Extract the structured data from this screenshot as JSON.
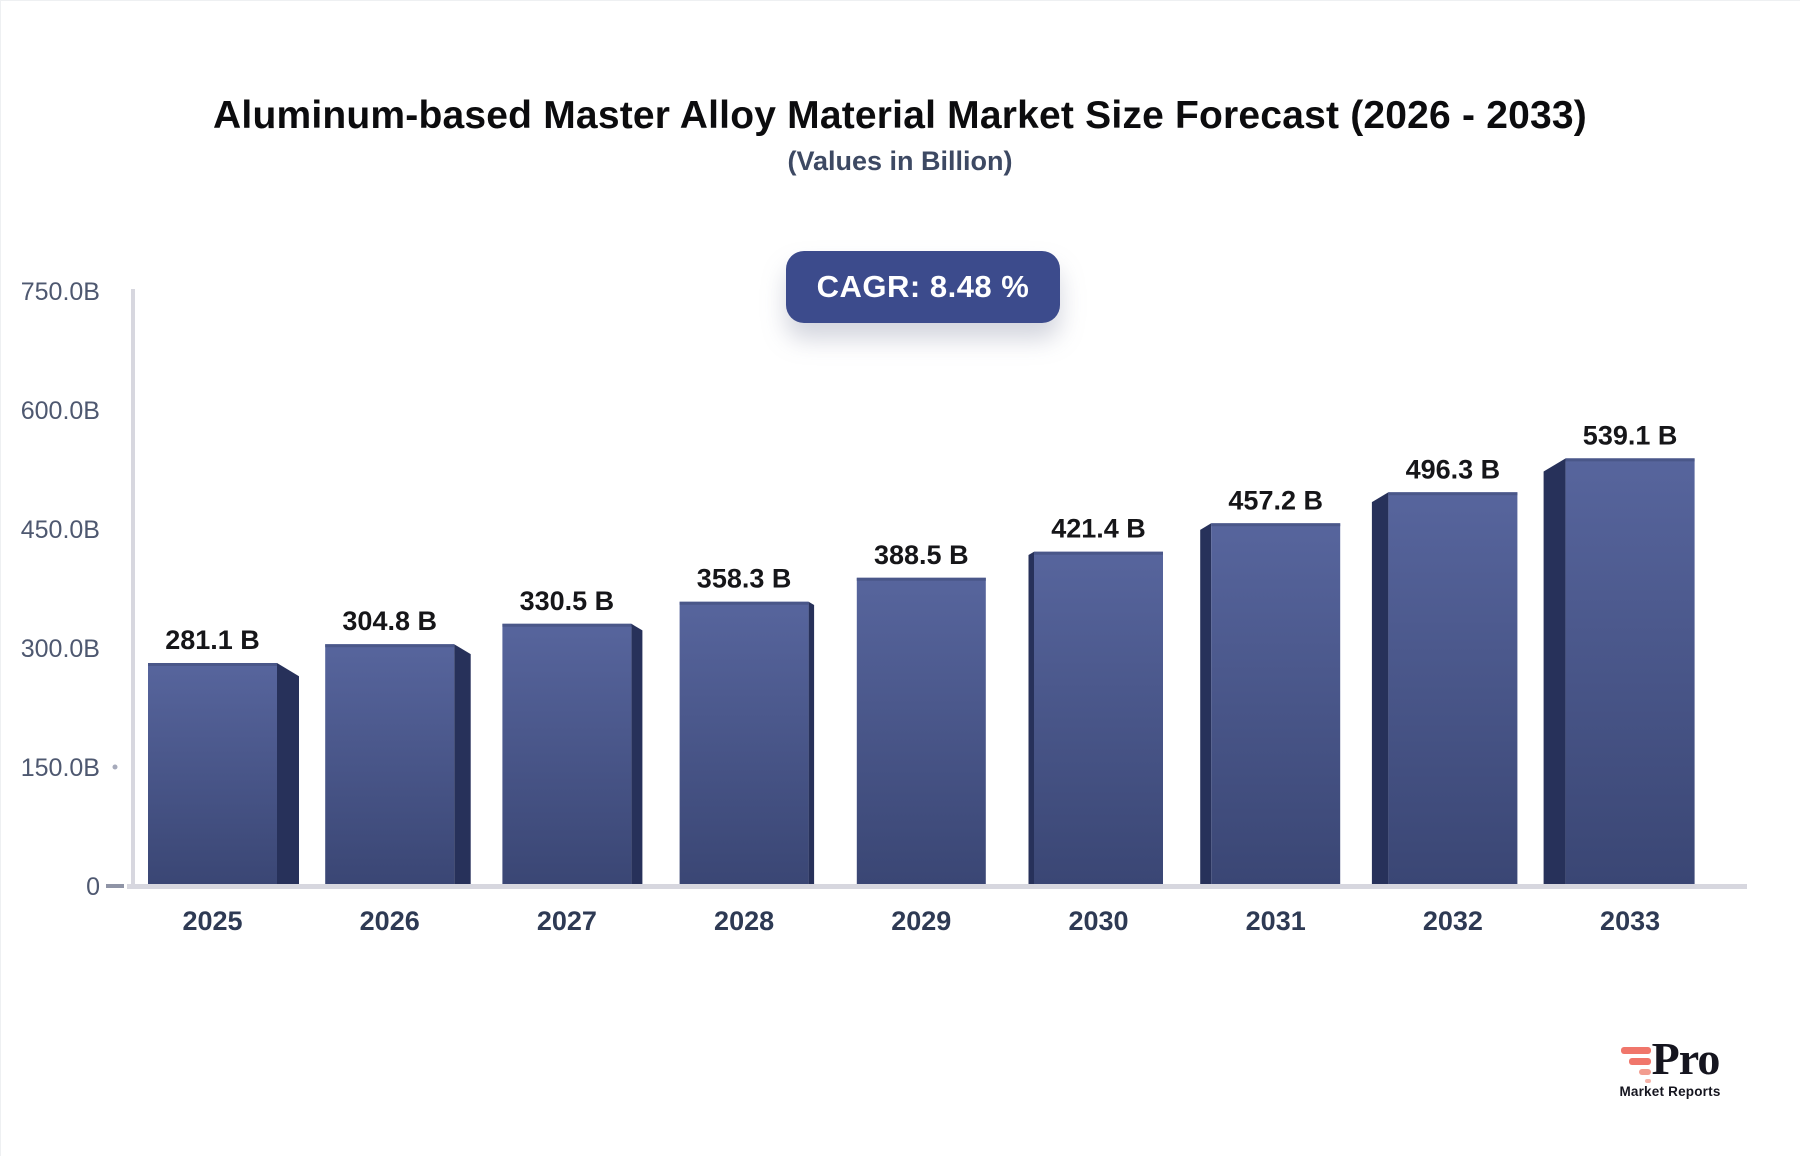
{
  "header": {
    "title": "Aluminum-based Master Alloy Material Market Size Forecast (2026 - 2033)",
    "subtitle": "(Values in Billion)"
  },
  "badge": {
    "label": "CAGR: 8.48 %",
    "background": "#3C4B8C",
    "text_color": "#FFFFFF"
  },
  "chart_data": {
    "type": "bar",
    "title": "Aluminum-based Master Alloy Material Market Size Forecast (2026 - 2033)",
    "subtitle": "(Values in Billion)",
    "unit": "Billion",
    "categories": [
      "2025",
      "2026",
      "2027",
      "2028",
      "2029",
      "2030",
      "2031",
      "2032",
      "2033"
    ],
    "values": [
      281.1,
      304.8,
      330.5,
      358.3,
      388.5,
      421.4,
      457.2,
      496.3,
      539.1
    ],
    "value_labels": [
      "281.1 B",
      "304.8 B",
      "330.5 B",
      "358.3 B",
      "388.5 B",
      "421.4 B",
      "457.2 B",
      "496.3 B",
      "539.1 B"
    ],
    "ylim": [
      0,
      750
    ],
    "yticks": [
      {
        "label": "750.0B",
        "value": 750
      },
      {
        "label": "600.0B",
        "value": 600
      },
      {
        "label": "450.0B",
        "value": 450
      },
      {
        "label": "300.0B",
        "value": 300
      },
      {
        "label": "150.0B",
        "value": 150
      },
      {
        "label": "0",
        "value": 0
      }
    ],
    "grid": false,
    "legend": false,
    "style_3d": true,
    "colors": {
      "bar_face_top": "#57659D",
      "bar_face_bottom": "#3A4674",
      "bar_side": "#27315A",
      "bar_top_edge": "#4A5789",
      "axis_line": "#D7D7DF",
      "ytick_text": "#4E5870",
      "xtick_text": "#2E3A54",
      "value_text": "#161619"
    }
  },
  "footer_logo": {
    "name": "Pro",
    "tagline": "Market Reports",
    "accent": "#F0766B"
  }
}
